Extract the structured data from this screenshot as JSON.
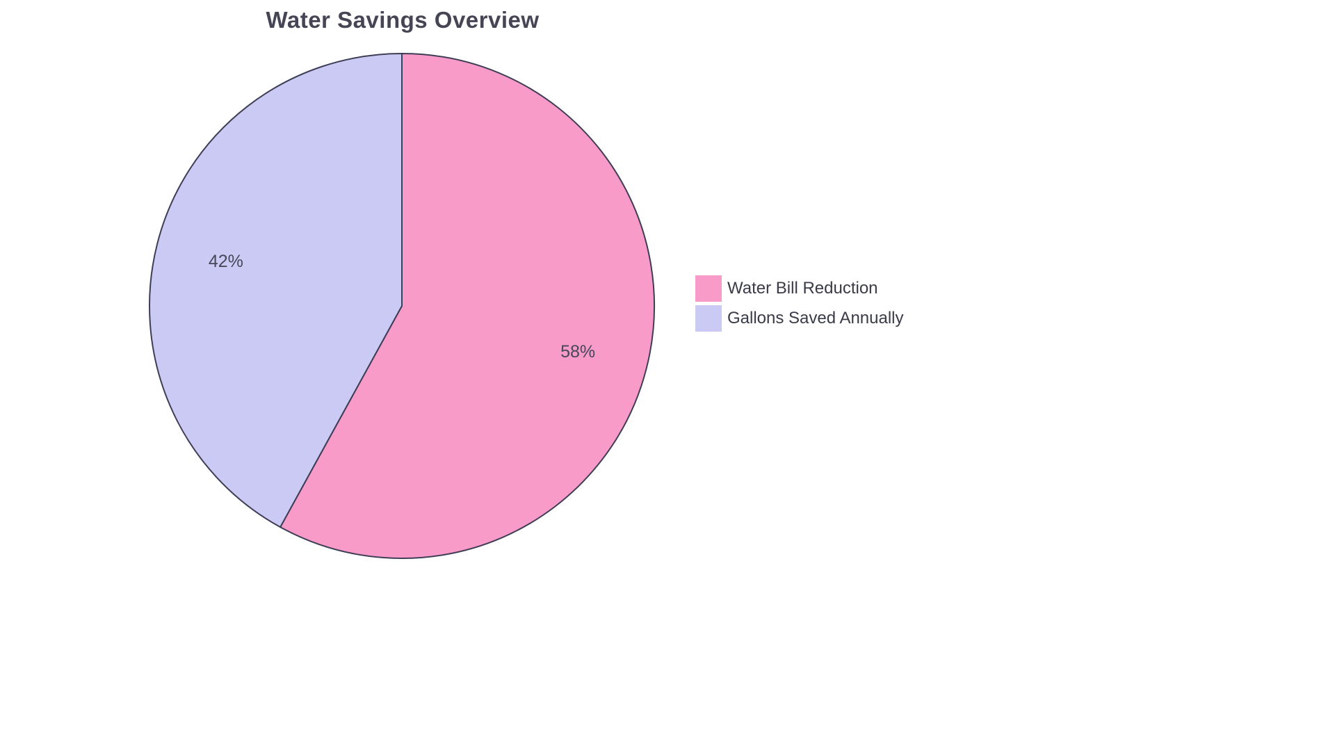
{
  "chart_data": {
    "type": "pie",
    "title": "Water Savings Overview",
    "labels": [
      "Water Bill Reduction",
      "Gallons Saved Annually"
    ],
    "values": [
      58,
      42
    ],
    "percent_labels": [
      "58%",
      "42%"
    ],
    "colors": [
      "#F89BC9",
      "#CACAF4"
    ],
    "stroke_color": "#3E3D56",
    "stroke_width": 2,
    "start_angle_deg": -90,
    "direction": "clockwise",
    "label_radius_fraction": 0.72,
    "legend_position": "right",
    "title_color": "#454556",
    "label_color": "#47475A",
    "background_color": "#ffffff"
  }
}
